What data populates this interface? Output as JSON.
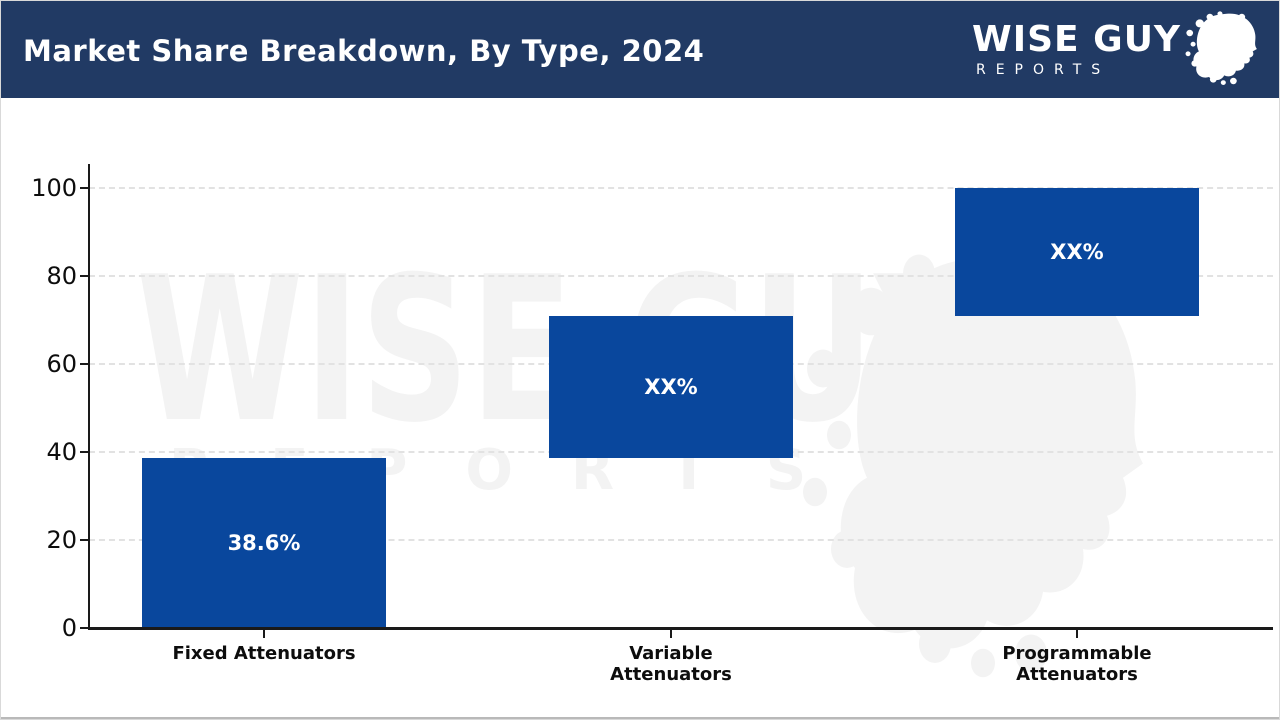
{
  "header": {
    "title": "Market Share Breakdown, By Type, 2024",
    "logo": {
      "brand_line1": "WISE GUY",
      "brand_line2": "REPORTS"
    }
  },
  "watermark": {
    "line1": "WISE GUY",
    "line2": "REPORTS"
  },
  "chart_data": {
    "type": "bar",
    "subtype": "waterfall-floating-bars",
    "title": "Market Share Breakdown, By Type, 2024",
    "categories": [
      "Fixed Attenuators",
      "Variable Attenuators",
      "Programmable Attenuators"
    ],
    "category_label_lines": [
      [
        "Fixed Attenuators"
      ],
      [
        "Variable",
        "Attenuators"
      ],
      [
        "Programmable",
        "Attenuators"
      ]
    ],
    "series": [
      {
        "name": "Market Share (%)",
        "segments": [
          {
            "category": "Fixed Attenuators",
            "start": 0,
            "end": 38.6,
            "label": "38.6%"
          },
          {
            "category": "Variable Attenuators",
            "start": 38.6,
            "end": 71,
            "label": "XX%"
          },
          {
            "category": "Programmable Attenuators",
            "start": 71,
            "end": 100,
            "label": "XX%"
          }
        ]
      }
    ],
    "xlabel": "",
    "ylabel": "",
    "ylim": [
      0,
      100
    ],
    "yticks": [
      0,
      20,
      40,
      60,
      80,
      100
    ],
    "grid": "horizontal-dashed",
    "legend": "none",
    "bar_color": "#09479d",
    "bar_label_color": "#ffffff"
  },
  "colors": {
    "header_bg": "#213a64",
    "page_bg": "#ffffff",
    "axis": "#1a1a1a",
    "gridline": "#e2e2e2",
    "watermark": "#f3f3f3",
    "bottom_rule": "#b9b9b9"
  }
}
